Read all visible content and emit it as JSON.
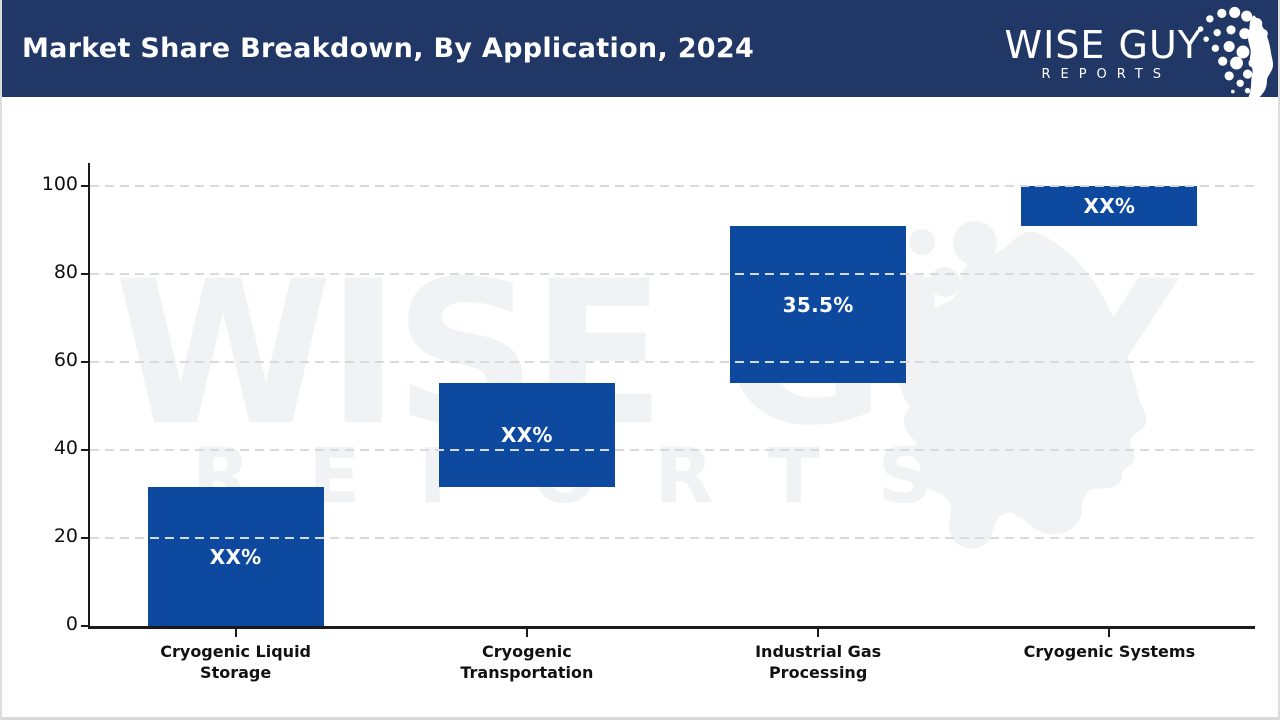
{
  "header": {
    "title": "Market Share Breakdown, By Application, 2024"
  },
  "logo": {
    "name": "WISE GUY",
    "subtitle": "REPORTS"
  },
  "watermark": {
    "line1": "WISE GUY",
    "line2": "REPORTS"
  },
  "chart_data": {
    "type": "bar",
    "subtype": "waterfall-stacked-breakdown",
    "title": "Market Share Breakdown, By Application, 2024",
    "categories": [
      "Cryogenic Liquid\nStorage",
      "Cryogenic\nTransportation",
      "Industrial Gas\nProcessing",
      "Cryogenic Systems"
    ],
    "segments": [
      {
        "category": "Cryogenic Liquid Storage",
        "start": 0,
        "end": 31.5,
        "label": "XX%"
      },
      {
        "category": "Cryogenic Transportation",
        "start": 31.5,
        "end": 55.3,
        "label": "XX%"
      },
      {
        "category": "Industrial Gas Processing",
        "start": 55.3,
        "end": 90.8,
        "label": "35.5%",
        "value": 35.5
      },
      {
        "category": "Cryogenic Systems",
        "start": 90.8,
        "end": 100,
        "label": "XX%"
      }
    ],
    "ylabel": "",
    "xlabel": "",
    "yticks": [
      0,
      20,
      40,
      60,
      80,
      100
    ],
    "ylim": [
      0,
      100
    ],
    "grid": "horizontal-dashed",
    "legend": "none",
    "colors": {
      "bar": "#0d4a9f",
      "header": "#213766",
      "grid": "#d9d9d9",
      "axis": "#1a1a1a",
      "bar_label": "#ffffff",
      "watermark": "#f1f2f4"
    }
  }
}
